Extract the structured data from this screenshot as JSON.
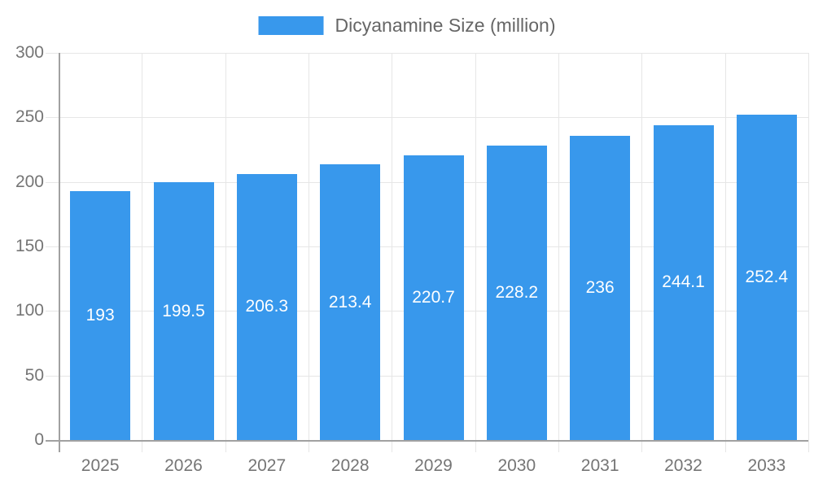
{
  "legend": {
    "label": "Dicyanamine Size (million)"
  },
  "chart_data": {
    "type": "bar",
    "title": "",
    "xlabel": "",
    "ylabel": "",
    "categories": [
      "2025",
      "2026",
      "2027",
      "2028",
      "2029",
      "2030",
      "2031",
      "2032",
      "2033"
    ],
    "series": [
      {
        "name": "Dicyanamine Size (million)",
        "values": [
          193,
          199.5,
          206.3,
          213.4,
          220.7,
          228.2,
          236,
          244.1,
          252.4
        ],
        "value_labels": [
          "193",
          "199.5",
          "206.3",
          "213.4",
          "220.7",
          "228.2",
          "236",
          "244.1",
          "252.4"
        ]
      }
    ],
    "ylim": [
      0,
      300
    ],
    "yticks": [
      0,
      50,
      100,
      150,
      200,
      250,
      300
    ],
    "ytick_labels": [
      "0",
      "50",
      "100",
      "150",
      "200",
      "250",
      "300"
    ],
    "grid": true,
    "legend_position": "top",
    "colors": {
      "bar": "#3898EC",
      "grid": "#E6E6E6",
      "axis": "#A1A1A1",
      "tick_text": "#757575",
      "legend_text": "#666666",
      "value_text": "#FFFFFF",
      "background": "#FFFFFF"
    }
  }
}
